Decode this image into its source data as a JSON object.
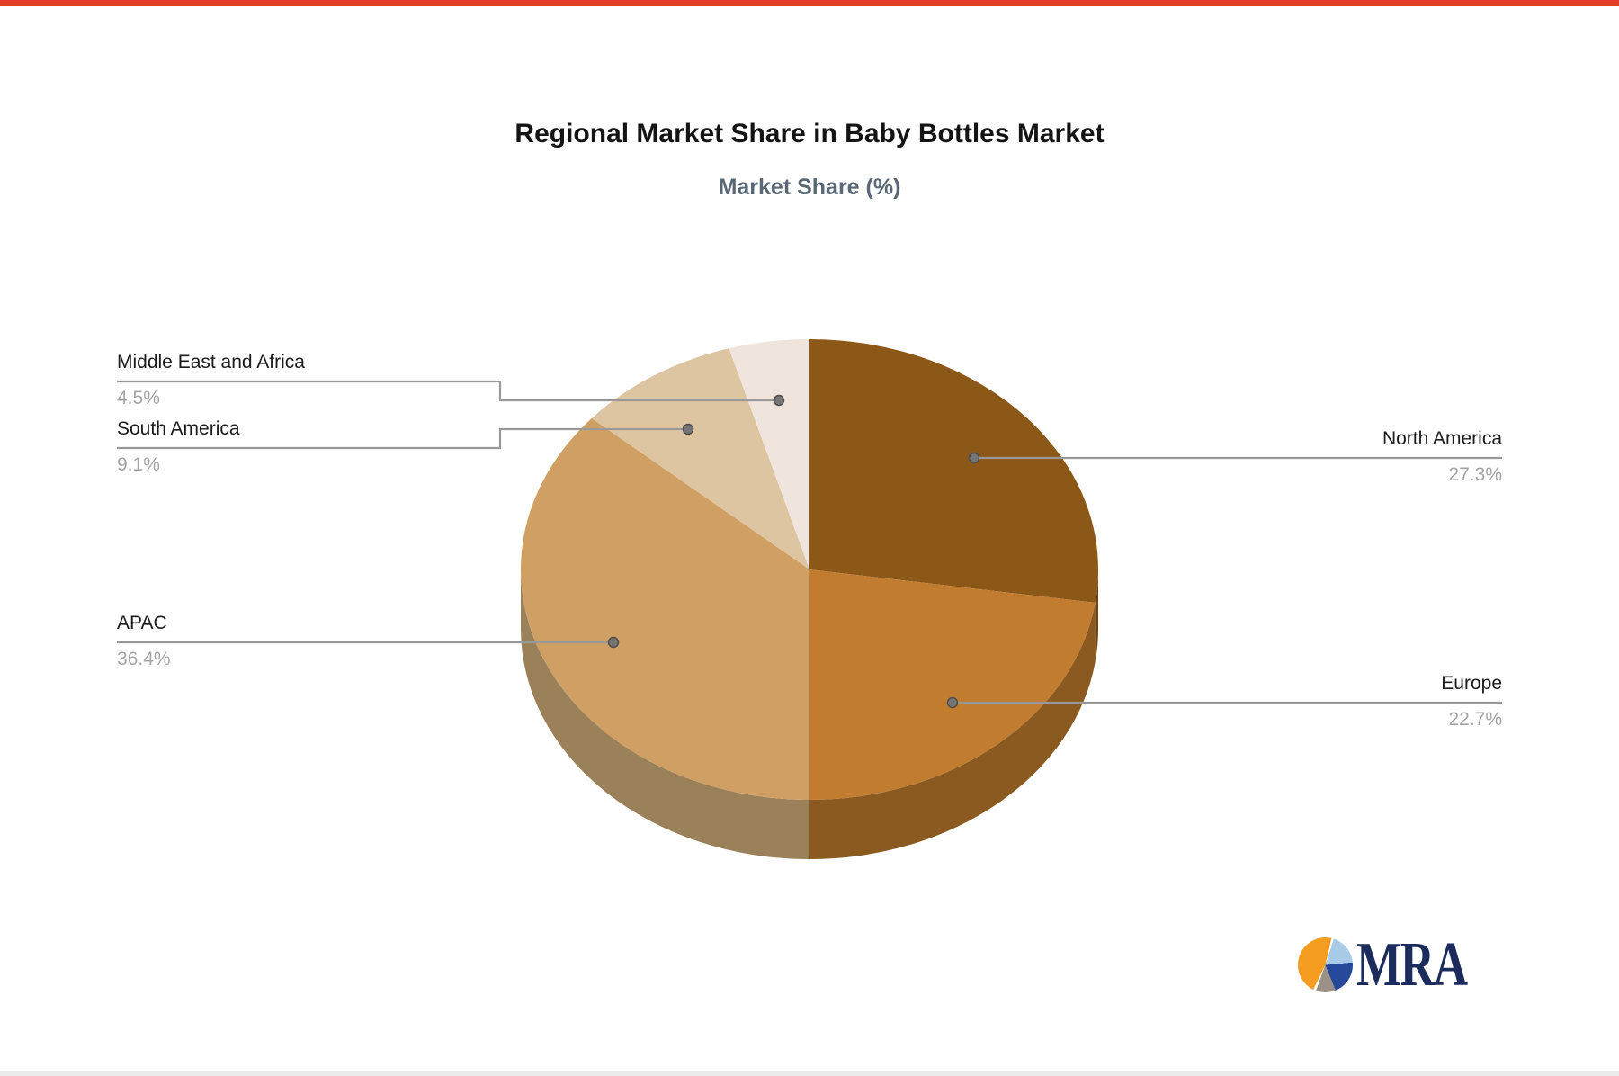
{
  "page": {
    "top_bar_color": "#e73b2b",
    "bottom_bar_color": "#ececec",
    "background_color": "#ffffff"
  },
  "chart_data": {
    "type": "pie",
    "title": "Regional Market Share in Baby Bottles Market",
    "subtitle": "Market Share (%)",
    "unit": "%",
    "effect_3d": true,
    "start_angle_deg": 0,
    "direction": "clockwise",
    "legend_position": "callout-labels",
    "series": [
      {
        "label": "North America",
        "value": 27.3,
        "display": "27.3%",
        "color": "#8b5818",
        "side_color": "#6e4512"
      },
      {
        "label": "Europe",
        "value": 22.7,
        "display": "22.7%",
        "color": "#c17c30",
        "side_color": "#8a5a20"
      },
      {
        "label": "APAC",
        "value": 36.4,
        "display": "36.4%",
        "color": "#d09f64",
        "side_color": "#9a815a"
      },
      {
        "label": "South America",
        "value": 9.1,
        "display": "9.1%",
        "color": "#dec5a2",
        "side_color": "#b09a7c"
      },
      {
        "label": "Middle East and Africa",
        "value": 4.5,
        "display": "4.5%",
        "color": "#f0e5dd",
        "side_color": "#c5b8ae"
      }
    ],
    "callout_line_color": "#999999",
    "callout_dot_color": "#757575",
    "label_text_color": "#1b1b1b",
    "percent_text_color": "#a5a5a5"
  },
  "logo": {
    "text": "MRA",
    "text_color": "#1b2b5c",
    "icon_colors": {
      "orange": "#f59d20",
      "light_blue": "#a9cbe8",
      "dark_blue": "#26489a",
      "gray": "#9b9186"
    }
  }
}
